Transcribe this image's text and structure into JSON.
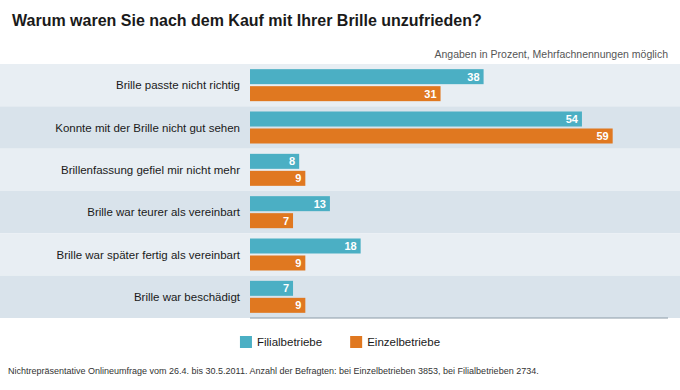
{
  "chart_data": {
    "type": "bar",
    "orientation": "horizontal",
    "title": "Warum waren Sie nach dem Kauf mit Ihrer Brille unzufrieden?",
    "subtitle": "Angaben in Prozent, Mehrfachnennungen möglich",
    "footnote": "Nichtrepräsentative Onlineumfrage vom 26.4. bis 30.5.2011. Anzahl der Befragten: bei Einzelbetrieben 3853, bei Filialbetrieben 2734.",
    "categories": [
      "Brille passte nicht richtig",
      "Konnte mit der Brille nicht gut sehen",
      "Brillenfassung gefiel mir nicht mehr",
      "Brille war teurer als vereinbart",
      "Brille war später fertig als vereinbart",
      "Brille war beschädigt"
    ],
    "series": [
      {
        "name": "Filialbetriebe",
        "color": "#4BAFC4",
        "values": [
          38,
          54,
          8,
          13,
          18,
          7
        ]
      },
      {
        "name": "Einzelbetriebe",
        "color": "#E07820",
        "values": [
          31,
          59,
          9,
          7,
          9,
          9
        ]
      }
    ],
    "xlim": [
      0,
      68
    ],
    "data_labels": true,
    "tick_labels": "y",
    "grid": false,
    "legend": "bottom"
  }
}
